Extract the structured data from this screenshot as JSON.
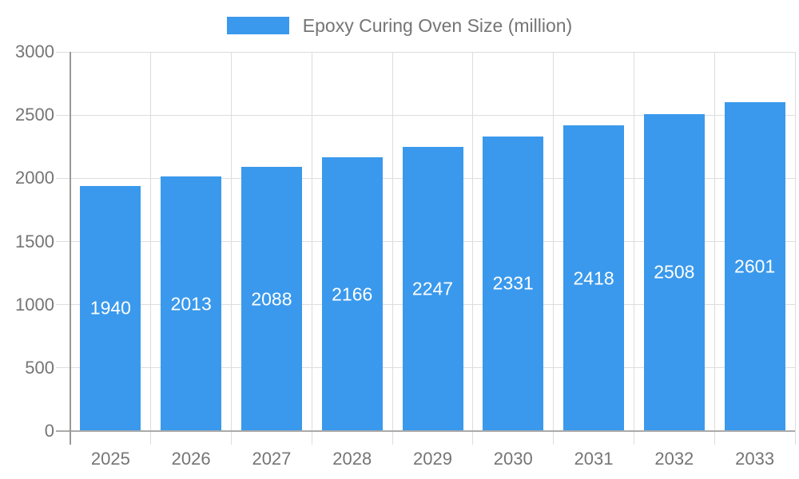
{
  "legend": {
    "label": "Epoxy Curing Oven Size (million)"
  },
  "chart_data": {
    "type": "bar",
    "title": "Epoxy Curing Oven Size (million)",
    "categories": [
      "2025",
      "2026",
      "2027",
      "2028",
      "2029",
      "2030",
      "2031",
      "2032",
      "2033"
    ],
    "series": [
      {
        "name": "Epoxy Curing Oven Size (million)",
        "values": [
          1940,
          2013,
          2088,
          2166,
          2247,
          2331,
          2418,
          2508,
          2601
        ]
      }
    ],
    "xlabel": "",
    "ylabel": "",
    "ylim": [
      0,
      3000
    ],
    "yticks": [
      0,
      500,
      1000,
      1500,
      2000,
      2500,
      3000
    ],
    "grid": true,
    "legend_position": "top-center",
    "value_labels_position": "inside-center"
  },
  "colors": {
    "bar": "#3A99EC",
    "gridline": "#DDDDDD",
    "axis_line": "#999999",
    "baseline": "#AAAAAA",
    "tick_label": "#757575",
    "legend_text": "#757575",
    "value_label": "#FFFFFF",
    "background": "#FFFFFF"
  }
}
